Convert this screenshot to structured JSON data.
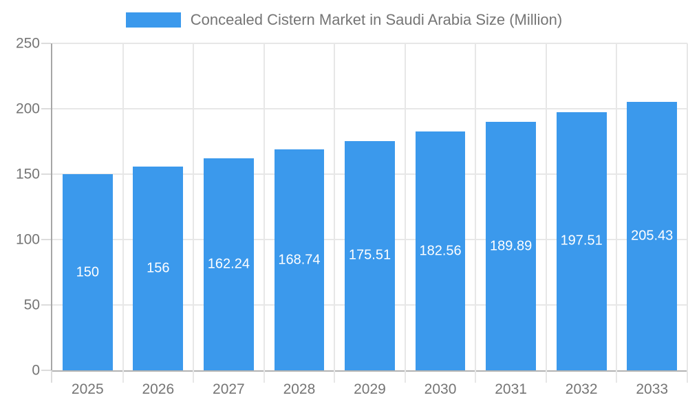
{
  "chart_data": {
    "type": "bar",
    "title": "Concealed Cistern Market in Saudi Arabia Size (Million)",
    "categories": [
      "2025",
      "2026",
      "2027",
      "2028",
      "2029",
      "2030",
      "2031",
      "2032",
      "2033"
    ],
    "values": [
      150,
      156,
      162.24,
      168.74,
      175.51,
      182.56,
      189.89,
      197.51,
      205.43
    ],
    "value_labels": [
      "150",
      "156",
      "162.24",
      "168.74",
      "175.51",
      "182.56",
      "189.89",
      "197.51",
      "205.43"
    ],
    "xlabel": "",
    "ylabel": "",
    "ylim": [
      0,
      250
    ],
    "yticks": [
      0,
      50,
      100,
      150,
      200,
      250
    ],
    "grid": true,
    "legend_position": "top",
    "colors": {
      "bar": "#3B99EC",
      "axis_text": "#757575",
      "gridline": "#E7E7E7",
      "y_axis_line": "#A6A6A6",
      "baseline": "#B3B3B3",
      "tick": "#DCDCDC",
      "value_label": "#FFFFFF"
    }
  }
}
